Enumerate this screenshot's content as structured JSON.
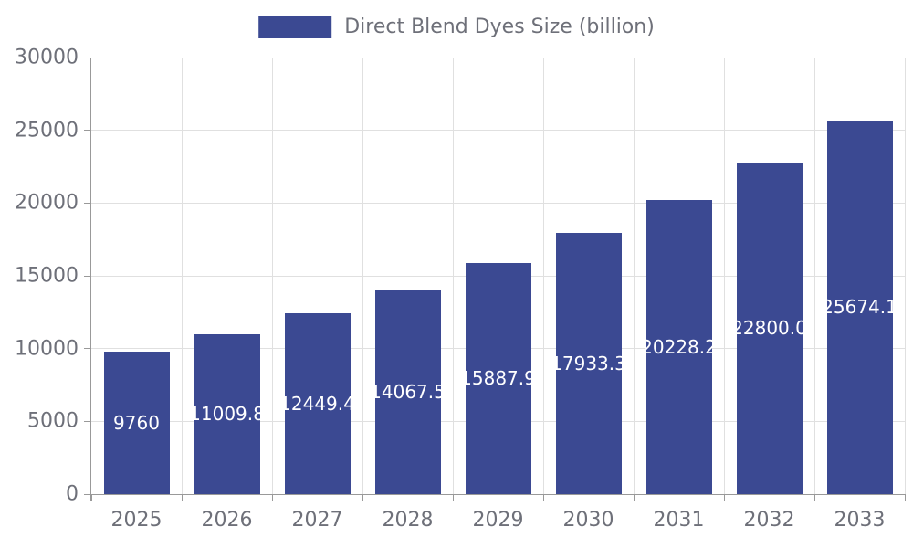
{
  "legend": {
    "label": "Direct Blend Dyes Size (billion)",
    "swatch_color": "#3B4992"
  },
  "colors": {
    "bar": "#3B4992",
    "bar_label_text": "#FFFFFF",
    "axis_text": "#6E7079",
    "axis_line": "#999999",
    "grid_line": "#E0E0E0",
    "background": "#FFFFFF"
  },
  "chart_data": {
    "type": "bar",
    "title": "Direct Blend Dyes Size (billion)",
    "legend_position": "top",
    "grid": true,
    "categories": [
      "2025",
      "2026",
      "2027",
      "2028",
      "2029",
      "2030",
      "2031",
      "2032",
      "2033"
    ],
    "values": [
      9760,
      11009.8,
      12449.4,
      14067.5,
      15887.9,
      17933.3,
      20228.2,
      22800.0,
      25674.1
    ],
    "bar_labels": [
      "9760",
      "11009.8",
      "12449.4",
      "14067.5",
      "15887.9",
      "17933.3",
      "20228.2",
      "22800.0",
      "25674.1"
    ],
    "xlabel": "",
    "ylabel": "",
    "ylim": [
      0,
      30000
    ],
    "ytick_interval": 5000,
    "ytick_labels": [
      "0",
      "5000",
      "10000",
      "15000",
      "20000",
      "25000",
      "30000"
    ]
  }
}
